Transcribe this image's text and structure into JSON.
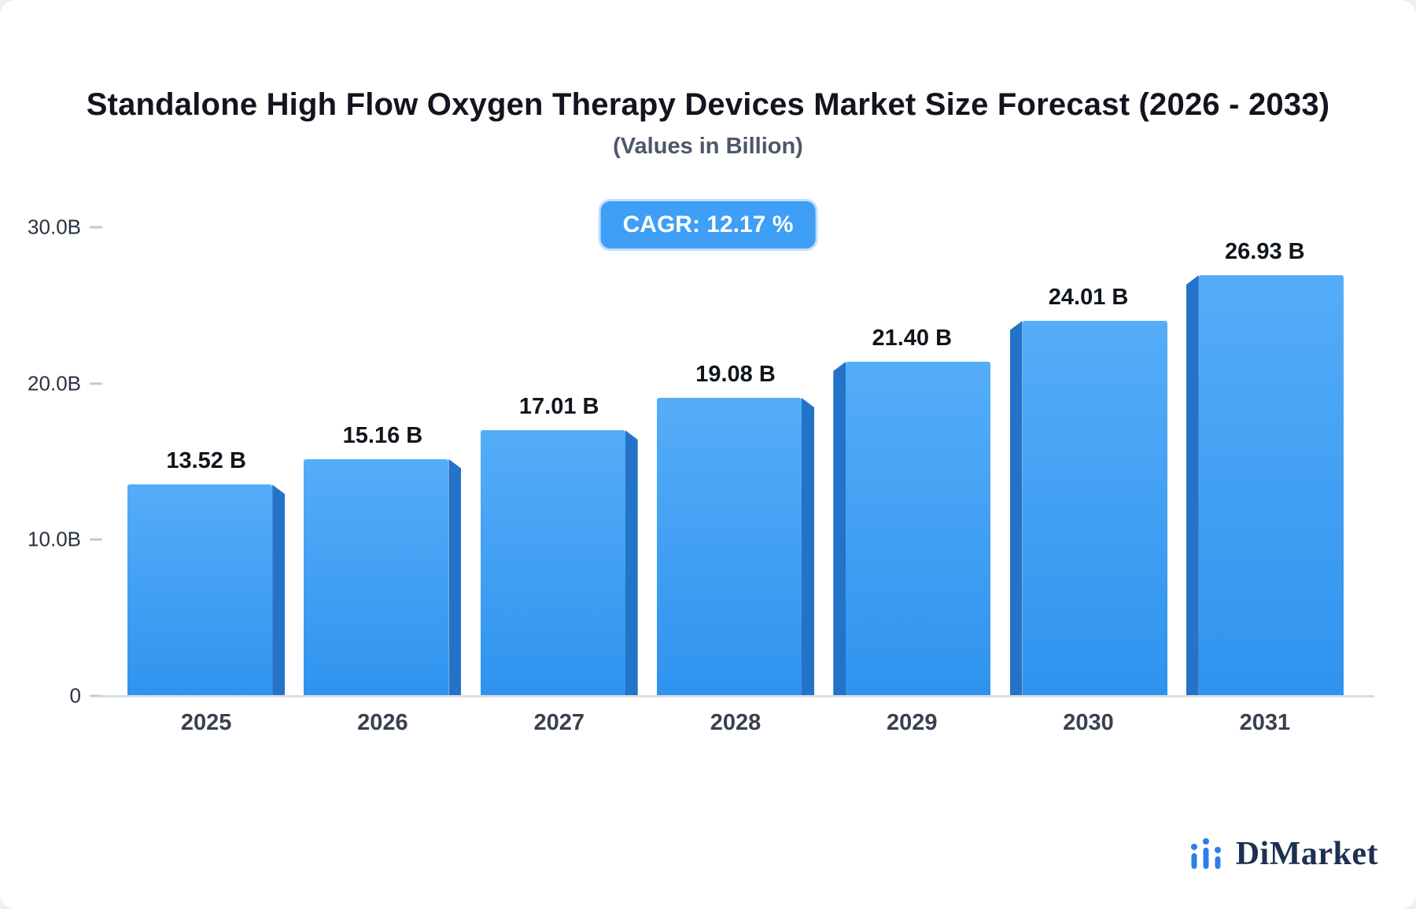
{
  "header": {
    "title": "Standalone High Flow Oxygen Therapy Devices Market Size Forecast (2026 - 2033)",
    "subtitle": "(Values in Billion)"
  },
  "badge": {
    "label": "CAGR: 12.17 %",
    "background": "#3f9ef6"
  },
  "chart_data": {
    "type": "bar",
    "title": "Standalone High Flow Oxygen Therapy Devices Market Size Forecast (2026 - 2033)",
    "subtitle": "(Values in Billion)",
    "cagr_label": "CAGR: 12.17 %",
    "categories": [
      "2025",
      "2026",
      "2027",
      "2028",
      "2029",
      "2030",
      "2031"
    ],
    "values": [
      13.52,
      15.16,
      17.01,
      19.08,
      21.4,
      24.01,
      26.93
    ],
    "value_labels": [
      "13.52 B",
      "15.16 B",
      "17.01 B",
      "19.08 B",
      "21.40 B",
      "24.01 B",
      "26.93 B"
    ],
    "xlabel": "",
    "ylabel": "",
    "ylim": [
      0,
      30
    ],
    "yticks": [
      {
        "value": 30,
        "label": "30.0B"
      },
      {
        "value": 20,
        "label": "20.0B"
      },
      {
        "value": 10,
        "label": "10.0B"
      },
      {
        "value": 0,
        "label": "0"
      }
    ],
    "grid": false,
    "legend": "none",
    "bar_face_color_top": "#55adf8",
    "bar_face_color_bottom": "#2f93ef",
    "bar_side_color": "#2373c8"
  },
  "footer": {
    "brand": "DiMarket",
    "brand_color": "#1d3050",
    "icon_color": "#2d7ee9"
  }
}
